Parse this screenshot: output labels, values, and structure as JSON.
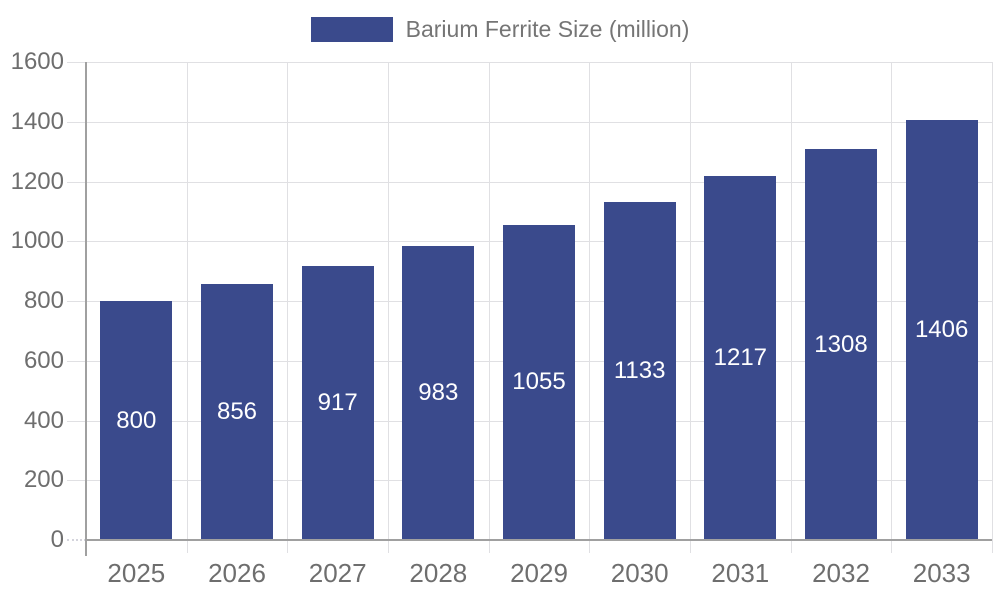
{
  "legend": {
    "label": "Barium Ferrite Size (million)"
  },
  "chart_data": {
    "type": "bar",
    "title": "Barium Ferrite Size (million)",
    "categories": [
      "2025",
      "2026",
      "2027",
      "2028",
      "2029",
      "2030",
      "2031",
      "2032",
      "2033"
    ],
    "values": [
      800,
      856,
      917,
      983,
      1055,
      1133,
      1217,
      1308,
      1406
    ],
    "xlabel": "",
    "ylabel": "",
    "ylim": [
      0,
      1600
    ],
    "yticks": [
      0,
      200,
      400,
      600,
      800,
      1000,
      1200,
      1400,
      1600
    ],
    "grid": true,
    "legend_position": "top",
    "bar_color": "#3A4A8C",
    "value_label_color": "#FFFFFF",
    "axis_color": "#A0A0A0",
    "grid_color": "#E0E0E3",
    "tick_label_color": "#6E6E6E",
    "legend_text_color": "#757575"
  }
}
